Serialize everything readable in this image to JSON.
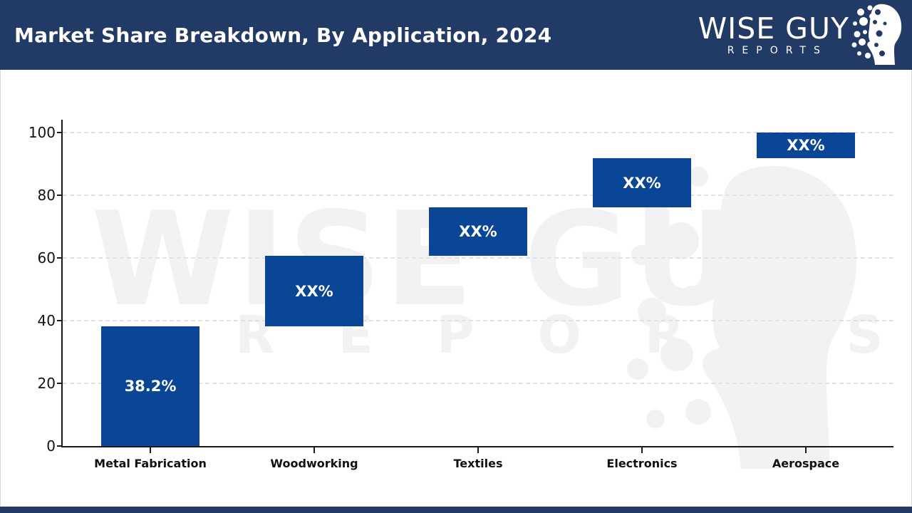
{
  "header": {
    "title": "Market Share Breakdown, By Application, 2024",
    "logo_line1": "WISE GUY",
    "logo_line2": "REPORTS"
  },
  "watermark": {
    "line1": "WISE GUY",
    "line2": "R E P O R T S"
  },
  "colors": {
    "header_bg": "#223A66",
    "bar_fill": "#0B4596",
    "bar_label_text": "#ffffff",
    "axis": "#1a1a1a",
    "gridline": "#e2e2e2",
    "watermark": "#f2f2f4",
    "footer_bg": "#223A66"
  },
  "chart_data": {
    "type": "bar",
    "variant": "waterfall",
    "title": "Market Share Breakdown, By Application, 2024",
    "categories": [
      "Metal Fabrication",
      "Woodworking",
      "Textiles",
      "Electronics",
      "Aerospace"
    ],
    "bars": [
      {
        "category": "Metal Fabrication",
        "start": 0,
        "end": 38.2,
        "label": "38.2%"
      },
      {
        "category": "Woodworking",
        "start": 38.2,
        "end": 60.6,
        "label": "XX%"
      },
      {
        "category": "Textiles",
        "start": 60.6,
        "end": 76.1,
        "label": "XX%"
      },
      {
        "category": "Electronics",
        "start": 76.1,
        "end": 91.8,
        "label": "XX%"
      },
      {
        "category": "Aerospace",
        "start": 91.8,
        "end": 100,
        "label": "XX%"
      }
    ],
    "y_ticks": [
      0,
      20,
      40,
      60,
      80,
      100
    ],
    "ylim": [
      0,
      104
    ],
    "xlabel": "",
    "ylabel": "",
    "grid": "horizontal-dashed",
    "legend": "none"
  }
}
